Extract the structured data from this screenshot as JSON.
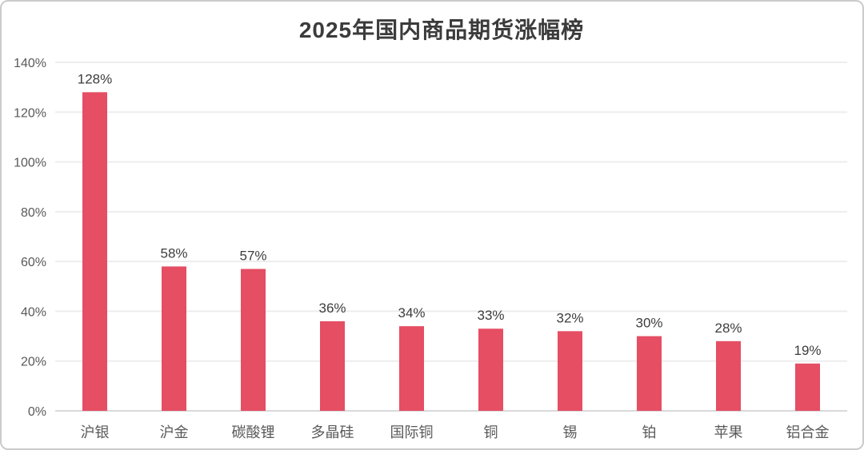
{
  "page": {
    "background_color": "#ffffff",
    "frame_border_color": "#cbcbcb"
  },
  "chart_data": {
    "type": "bar",
    "title": "2025年国内商品期货涨幅榜",
    "categories": [
      "沪银",
      "沪金",
      "碳酸锂",
      "多晶硅",
      "国际铜",
      "铜",
      "锡",
      "铂",
      "苹果",
      "铝合金"
    ],
    "values": [
      128,
      58,
      57,
      36,
      34,
      33,
      32,
      30,
      28,
      19
    ],
    "value_labels": [
      "128%",
      "58%",
      "57%",
      "36%",
      "34%",
      "33%",
      "32%",
      "30%",
      "28%",
      "19%"
    ],
    "xlabel": "",
    "ylabel": "",
    "ylim": [
      0,
      140
    ],
    "ytick_step": 20,
    "ytick_labels": [
      "0%",
      "20%",
      "40%",
      "60%",
      "80%",
      "100%",
      "120%",
      "140%"
    ],
    "grid": true,
    "legend": "none",
    "bar_color": "#e54e63",
    "title_color": "#3b3b3b",
    "value_label_color": "#3d3d3d",
    "axis_label_color": "#595959",
    "gridline_color": "#ededed",
    "axis_line_color": "#d9d9d9"
  }
}
